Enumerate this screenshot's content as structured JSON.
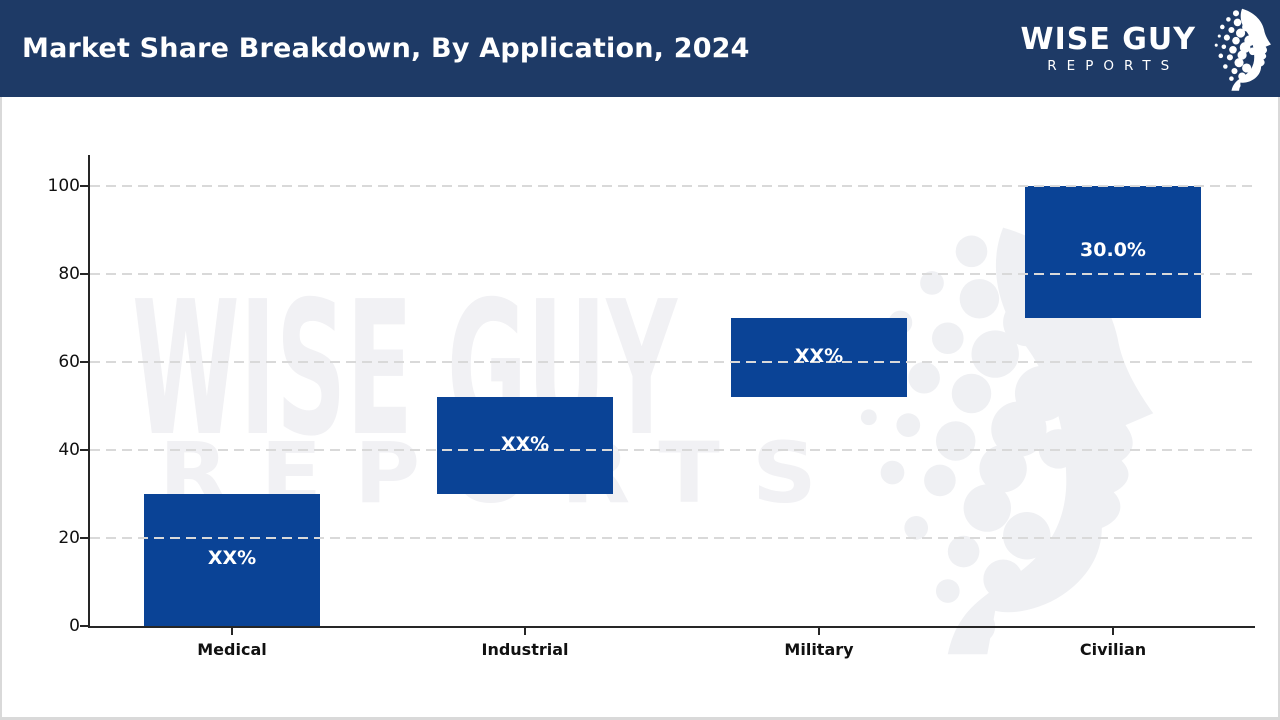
{
  "header": {
    "title": "Market Share Breakdown, By Application, 2024",
    "bg_color": "#1e3a66",
    "logo": {
      "wordmark": "WISE GUY",
      "subtext": "REPORTS"
    }
  },
  "watermark": {
    "wordmark": "WISE GUY",
    "subtext": "REPORTS"
  },
  "chart_data": {
    "type": "bar",
    "subtype": "floating-waterfall",
    "title": "Market Share Breakdown, By Application, 2024",
    "categories": [
      "Medical",
      "Industrial",
      "Military",
      "Civilian"
    ],
    "segments": [
      {
        "category": "Medical",
        "start": 0,
        "end": 30,
        "size": 30,
        "label": "XX%"
      },
      {
        "category": "Industrial",
        "start": 30,
        "end": 52,
        "size": 22,
        "label": "XX%"
      },
      {
        "category": "Military",
        "start": 52,
        "end": 70,
        "size": 18,
        "label": "XX%"
      },
      {
        "category": "Civilian",
        "start": 70,
        "end": 100,
        "size": 30,
        "label": "30.0%"
      }
    ],
    "ylim": [
      0,
      100
    ],
    "yticks": [
      0,
      20,
      40,
      60,
      80,
      100
    ],
    "grid": {
      "horizontal": true,
      "style": "dashed",
      "color": "#d9d9d9",
      "above_bars": true
    },
    "bar_color": "#0a4396",
    "bar_label_color": "#ffffff",
    "axis_color": "#262626",
    "legend": "none"
  }
}
